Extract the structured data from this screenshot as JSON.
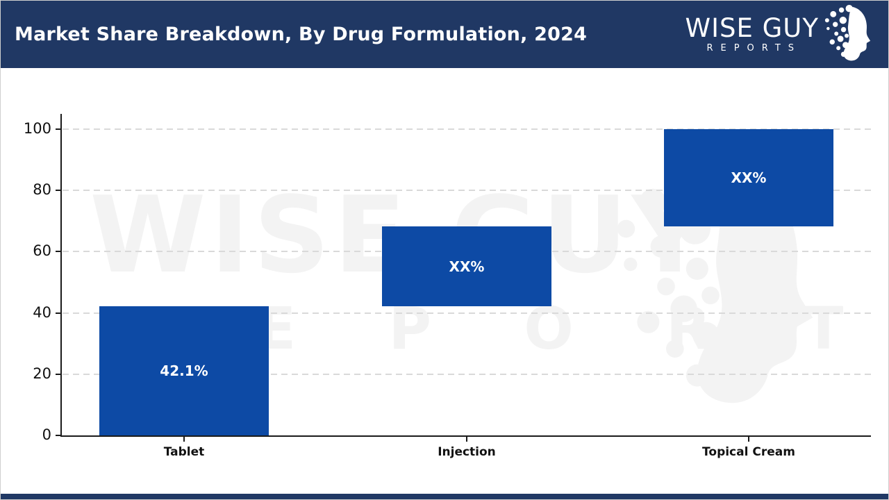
{
  "header": {
    "title": "Market Share Breakdown, By Drug Formulation, 2024",
    "logo": {
      "line1": "WISE GUY",
      "line2": "REPORTS"
    }
  },
  "watermark": {
    "line1": "WISE GUY",
    "line2": "R E P O R T S"
  },
  "chart_data": {
    "type": "bar",
    "subtype": "waterfall",
    "title": "Market Share Breakdown, By Drug Formulation, 2024",
    "categories": [
      "Tablet",
      "Injection",
      "Topical Cream"
    ],
    "segments": [
      {
        "category": "Tablet",
        "start": 0,
        "end": 42.1,
        "label": "42.1%"
      },
      {
        "category": "Injection",
        "start": 42.1,
        "end": 68.2,
        "label": "XX%"
      },
      {
        "category": "Topical Cream",
        "start": 68.2,
        "end": 100,
        "label": "XX%"
      }
    ],
    "xlabel": "",
    "ylabel": "",
    "ylim": [
      0,
      100
    ],
    "yticks": [
      0,
      20,
      40,
      60,
      80,
      100
    ],
    "grid": "horizontal dashed",
    "legend": "none"
  },
  "colors": {
    "header_bg": "#203864",
    "footer_bg": "#203864",
    "bar": "#0d4aa5",
    "bar_label": "#ffffff",
    "gridline": "#d9d9d9",
    "axis": "#1a1a1a",
    "watermark": "#f3f3f3",
    "title_text": "#ffffff"
  }
}
